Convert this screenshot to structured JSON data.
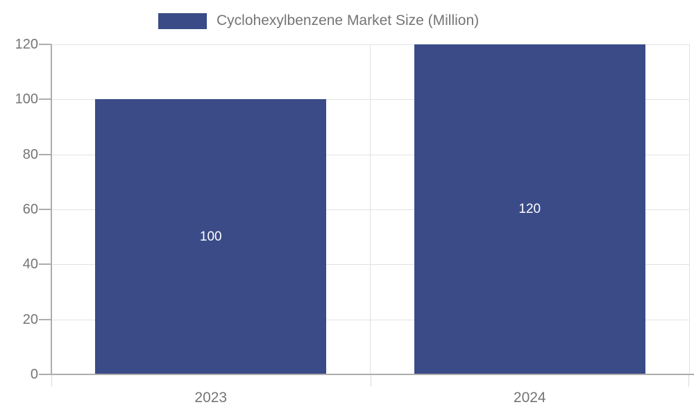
{
  "chart_data": {
    "type": "bar",
    "title": "",
    "legend": {
      "label": "Cyclohexylbenzene Market Size (Million)",
      "position": "top-center"
    },
    "categories": [
      "2023",
      "2024"
    ],
    "series": [
      {
        "name": "Cyclohexylbenzene Market Size (Million)",
        "values": [
          100,
          120
        ]
      }
    ],
    "bar_value_labels": [
      "100",
      "120"
    ],
    "xlabel": "",
    "ylabel": "",
    "ylim": [
      0,
      120
    ],
    "yticks": [
      0,
      20,
      40,
      60,
      80,
      100,
      120
    ],
    "grid": true,
    "colors": {
      "bar": "#3A4B87",
      "bar_label_text": "#FFFFFF",
      "axis_text": "#757575",
      "grid_line": "#E2E2E2",
      "axis_line": "#ADADAD",
      "background": "#FFFFFF"
    }
  }
}
